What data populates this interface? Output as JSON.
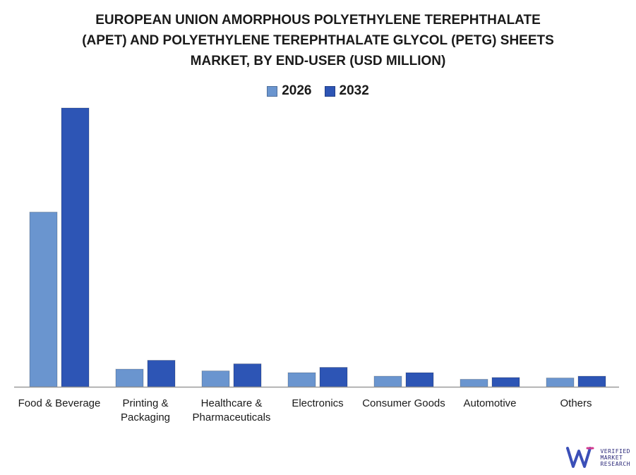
{
  "chart_data": {
    "type": "bar",
    "title_lines": [
      "EUROPEAN UNION AMORPHOUS POLYETHYLENE TEREPHTHALATE",
      "(APET) AND POLYETHYLENE TEREPHTHALATE GLYCOL (PETG) SHEETS",
      "MARKET, BY END-USER (USD MILLION)"
    ],
    "categories": [
      [
        "Food & Beverage"
      ],
      [
        "Printing &",
        "Packaging"
      ],
      [
        "Healthcare &",
        "Pharmaceuticals"
      ],
      [
        "Electronics"
      ],
      [
        "Consumer Goods"
      ],
      [
        "Automotive"
      ],
      [
        "Others"
      ]
    ],
    "series": [
      {
        "name": "2026",
        "color": "#6a95cf",
        "values": [
          198,
          20,
          18,
          16,
          12,
          8.5,
          10
        ]
      },
      {
        "name": "2032",
        "color": "#2d55b5",
        "values": [
          316,
          30,
          26,
          22,
          16,
          10.5,
          12
        ]
      }
    ],
    "ylim": [
      0,
      400
    ],
    "grid": false,
    "legend_position": "top-center"
  },
  "brand": {
    "logo_lines": [
      "VERIFIED",
      "MARKET",
      "RESEARCH"
    ]
  }
}
